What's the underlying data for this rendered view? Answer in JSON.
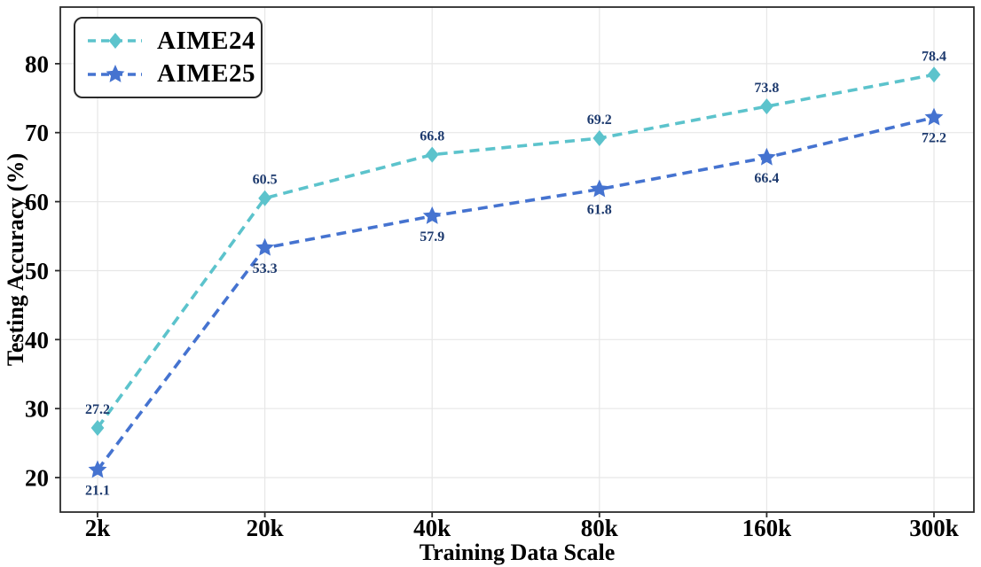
{
  "chart_data": {
    "type": "line",
    "title": "",
    "xlabel": "Training Data Scale",
    "ylabel": "Testing Accuracy (%)",
    "categories": [
      "2k",
      "20k",
      "40k",
      "80k",
      "160k",
      "300k"
    ],
    "series": [
      {
        "name": "AIME24",
        "values": [
          27.2,
          60.5,
          66.8,
          69.2,
          73.8,
          78.4
        ],
        "color": "#5cc3cc",
        "marker": "diamond",
        "linestyle": "dashed",
        "label_side": "above"
      },
      {
        "name": "AIME25",
        "values": [
          21.1,
          53.3,
          57.9,
          61.8,
          66.4,
          72.2
        ],
        "color": "#4573d0",
        "marker": "star",
        "linestyle": "dashed",
        "label_side": "below"
      }
    ],
    "yticks": [
      20,
      30,
      40,
      50,
      60,
      70,
      80
    ],
    "ylim": [
      15,
      88.2
    ],
    "grid": true,
    "legend_position": "upper-left",
    "data_label_color": "#1d3a6e",
    "axis_color": "#2b2b2b",
    "grid_color": "#e7e7e7",
    "background": "#ffffff"
  }
}
